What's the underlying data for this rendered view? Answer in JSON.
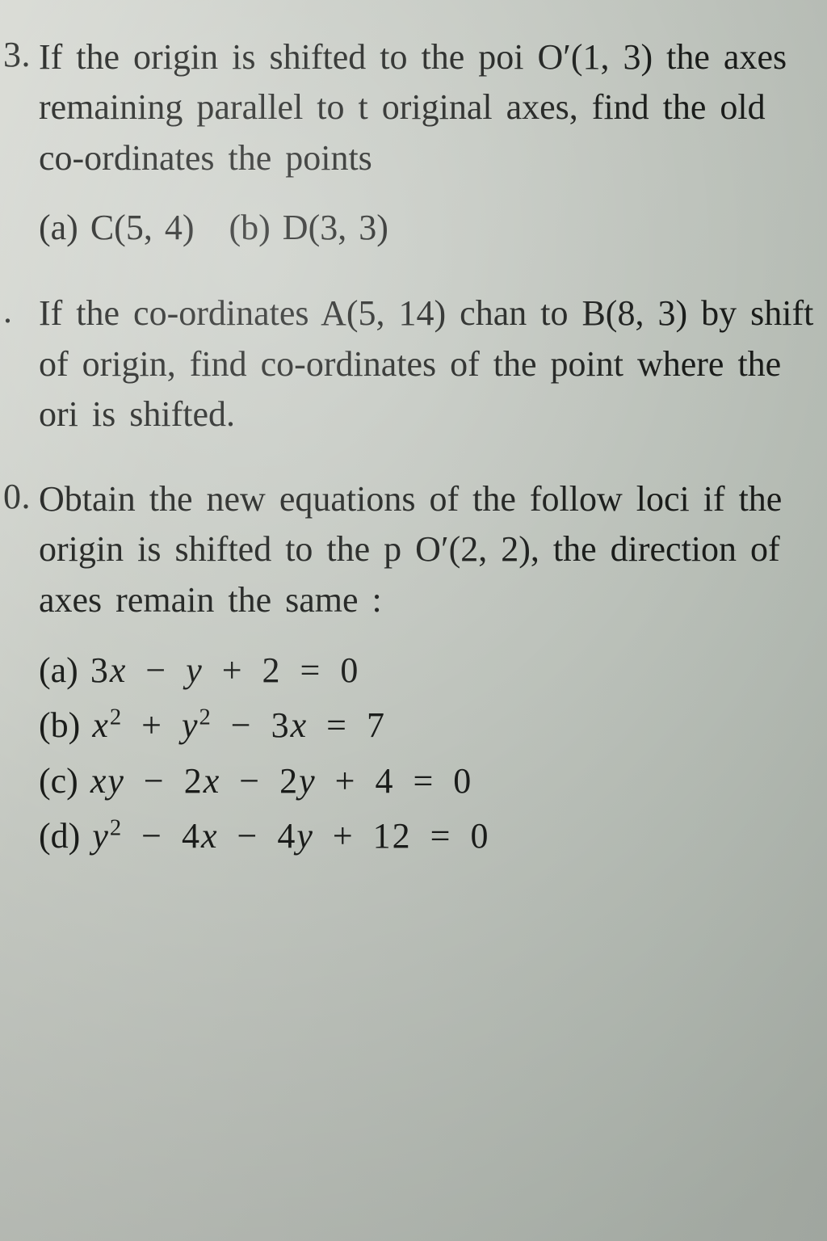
{
  "q1": {
    "number": "3.",
    "body": "If the origin is shifted to the poi O′(1, 3) the axes remaining parallel to t original axes, find the old co-ordinates the points",
    "parts_inline": [
      "(a) C(5, 4)",
      "(b) D(3, 3)"
    ]
  },
  "q2": {
    "number": ".",
    "body": "If the co-ordinates A(5, 14) chan to B(8, 3) by shift of origin, find co-ordinates of the point where the ori is shifted."
  },
  "q3": {
    "number": "0.",
    "body": "Obtain the new equations of the follow loci if the origin is shifted to the p O′(2, 2), the direction of axes remain the same :",
    "parts": [
      {
        "label": "(a)",
        "eq_html": "3<span class='math'>x</span> − <span class='math'>y</span> + 2 = 0"
      },
      {
        "label": "(b)",
        "eq_html": "<span class='math'>x</span><sup>2</sup> + <span class='math'>y</span><sup>2</sup> − 3<span class='math'>x</span> = 7"
      },
      {
        "label": "(c)",
        "eq_html": "<span class='math'>xy</span> − 2<span class='math'>x</span> − 2<span class='math'>y</span> + 4 = 0"
      },
      {
        "label": "(d)",
        "eq_html": "<span class='math'>y</span><sup>2</sup> − 4<span class='math'>x</span> − 4<span class='math'>y</span> + 12 = 0"
      }
    ]
  }
}
